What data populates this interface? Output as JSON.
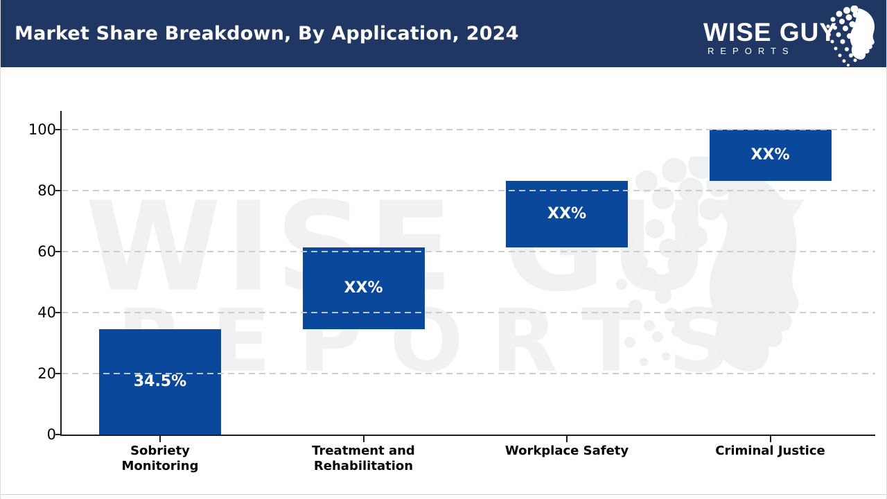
{
  "header": {
    "title": "Market Share Breakdown, By Application, 2024",
    "logo": {
      "wordmark": "WISE GUY",
      "subtext": "REPORTS"
    }
  },
  "watermark": {
    "line1": "WISE GUY",
    "line2": "REPORTS"
  },
  "chart_data": {
    "type": "bar",
    "variant": "waterfall-floating-bars",
    "title": "Market Share Breakdown, By Application, 2024",
    "categories": [
      "Sobriety\nMonitoring",
      "Treatment and\nRehabilitation",
      "Workplace Safety",
      "Criminal Justice"
    ],
    "segments": [
      {
        "category": "Sobriety Monitoring",
        "start": 0,
        "end": 34.5,
        "label": "34.5%"
      },
      {
        "category": "Treatment and Rehabilitation",
        "start": 34.5,
        "end": 61.4,
        "label": "XX%"
      },
      {
        "category": "Workplace Safety",
        "start": 61.4,
        "end": 83.2,
        "label": "XX%"
      },
      {
        "category": "Criminal Justice",
        "start": 83.2,
        "end": 100,
        "label": "XX%"
      }
    ],
    "yticks": [
      0,
      20,
      40,
      60,
      80,
      100
    ],
    "ylim": [
      0,
      106
    ],
    "xlabel": "",
    "ylabel": "",
    "grid": "horizontal-dashed",
    "legend": "none",
    "bar_color": "#0a489c",
    "label_color": "#ffffff",
    "header_color": "#203764"
  }
}
